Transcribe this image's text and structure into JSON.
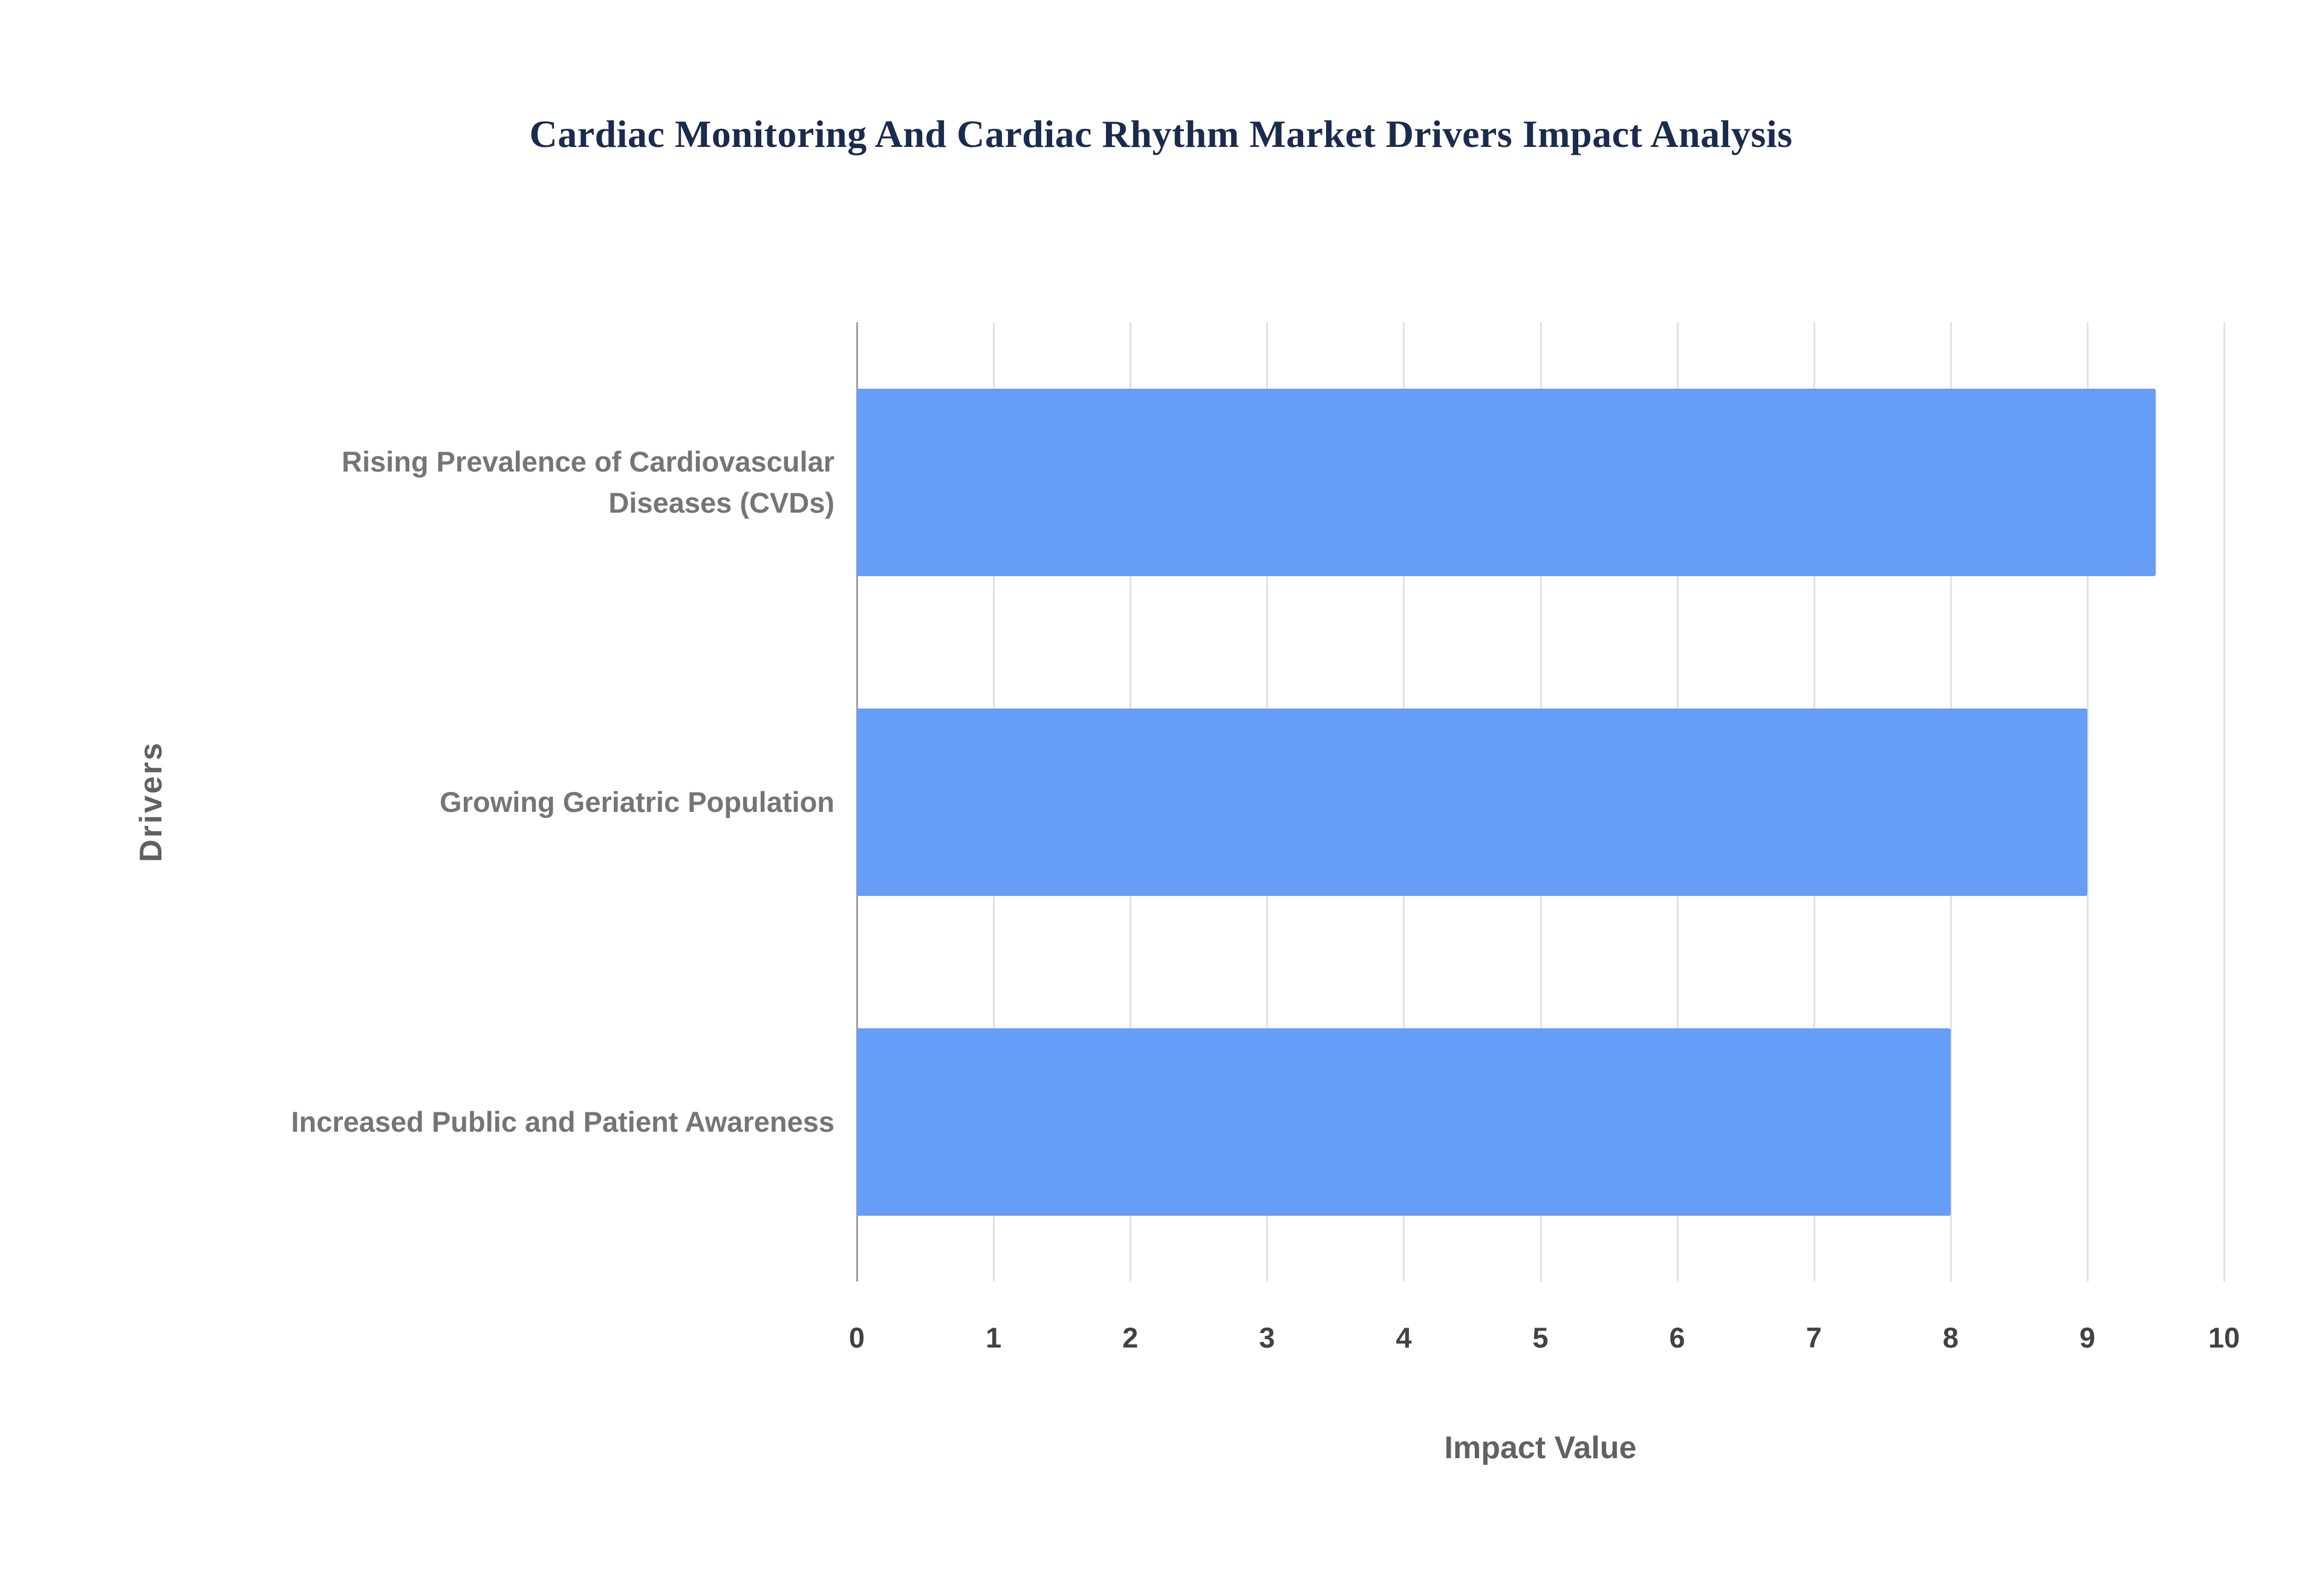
{
  "title": "Cardiac Monitoring And Cardiac Rhythm Market Drivers Impact Analysis",
  "chart_data": {
    "type": "bar",
    "orientation": "horizontal",
    "title": "Cardiac Monitoring And Cardiac Rhythm Market Drivers Impact Analysis",
    "categories": [
      "Rising Prevalence of Cardiovascular Diseases (CVDs)",
      "Growing Geriatric Population",
      "Increased Public and Patient Awareness"
    ],
    "values": [
      9.5,
      9,
      8
    ],
    "xlabel": "Impact Value",
    "ylabel": "Drivers",
    "xlim": [
      0,
      10
    ],
    "xticks": [
      0,
      1,
      2,
      3,
      4,
      5,
      6,
      7,
      8,
      9,
      10
    ],
    "grid": true,
    "legend": false,
    "bar_color": "#669df6",
    "gridline_color": "#e2e2e2",
    "title_color": "#1b2b4d",
    "label_color": "#757575",
    "tick_color": "#424242",
    "axis_title_color": "#616161"
  }
}
